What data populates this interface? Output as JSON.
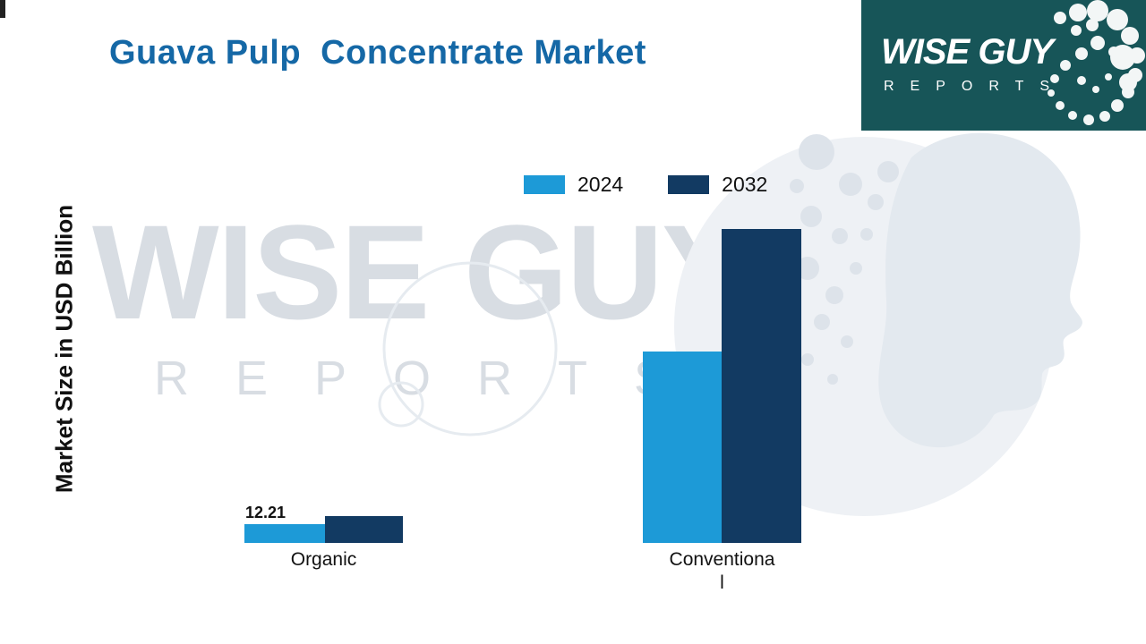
{
  "page": {
    "title": "Guava Pulp  Concentrate Market"
  },
  "colors": {
    "title": "#1568a6",
    "brand_bg": "#175558",
    "watermark": "#d8dde3"
  },
  "brand": {
    "line1": "WISE GUY",
    "line2": "REPORTS"
  },
  "watermark": {
    "line1": "WISE GUY",
    "line2": "REPORTS"
  },
  "chart_data": {
    "type": "bar",
    "title": "Guava Pulp Concentrate Market",
    "xlabel": "",
    "ylabel": "Market Size in USD Billion",
    "categories": [
      "Organic",
      "Conventional"
    ],
    "series": [
      {
        "name": "2024",
        "color": "#1d9ad7",
        "values": [
          12.21,
          125
        ]
      },
      {
        "name": "2032",
        "color": "#123a62",
        "values": [
          17.5,
          205
        ]
      }
    ],
    "ylim": [
      0,
      210
    ],
    "grid": false,
    "legend_position": "top-right",
    "annotations": [
      {
        "series": "2024",
        "category": "Organic",
        "text": "12.21"
      }
    ]
  }
}
